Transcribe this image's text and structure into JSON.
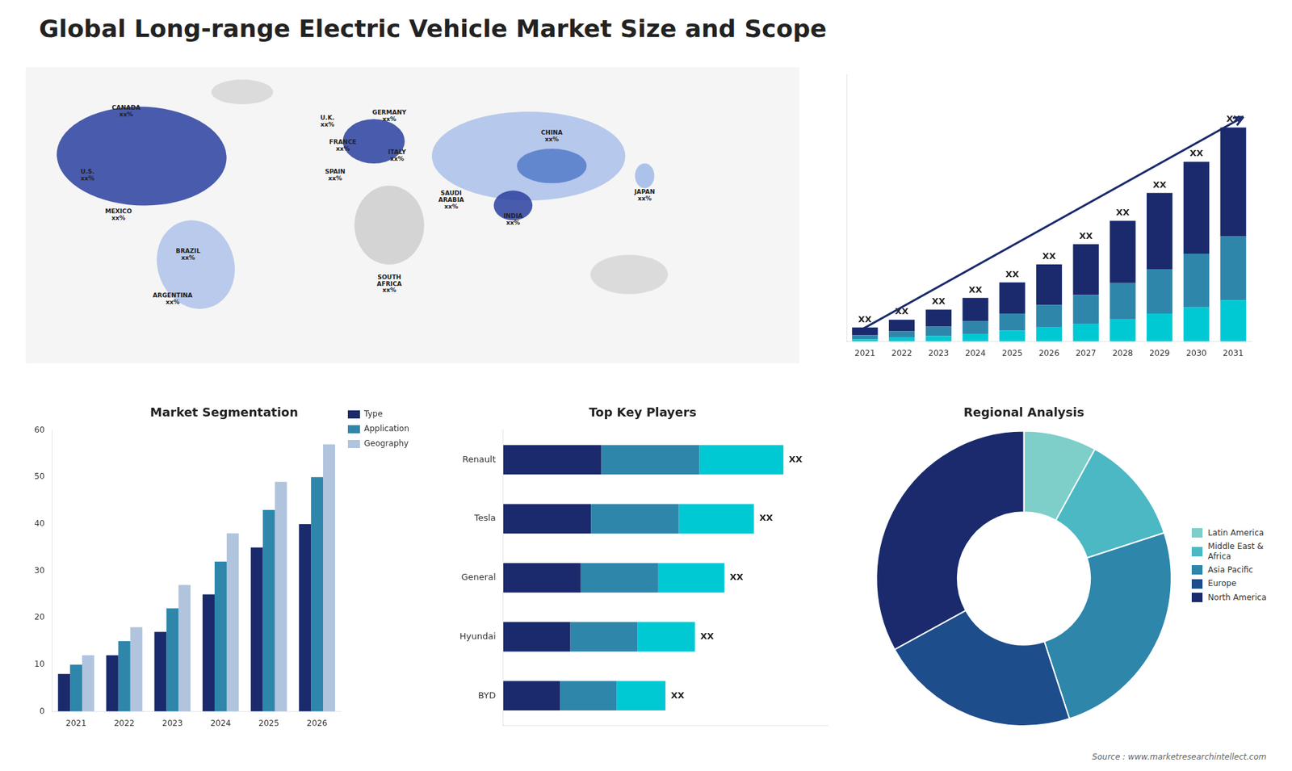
{
  "title": "Global Long-range Electric Vehicle Market Size and Scope",
  "annotations": [
    "Source : www.marketresearchintellect.com"
  ],
  "chart_data": [
    {
      "type": "map",
      "annotations": [
        "CANADA\nxx%",
        "U.S.\nxx%",
        "MEXICO\nxx%",
        "BRAZIL\nxx%",
        "ARGENTINA\nxx%",
        "U.K.\nxx%",
        "FRANCE\nxx%",
        "SPAIN\nxx%",
        "GERMANY\nxx%",
        "ITALY\nxx%",
        "SAUDI\nARABIA\nxx%",
        "SOUTH\nAFRICA\nxx%",
        "CHINA\nxx%",
        "INDIA\nxx%",
        "JAPAN\nxx%"
      ]
    },
    {
      "type": "bar",
      "stacked": true,
      "categories": [
        "2021",
        "2022",
        "2023",
        "2024",
        "2025",
        "2026",
        "2027",
        "2028",
        "2029",
        "2030",
        "2031"
      ],
      "series": [
        {
          "color": "#00c9d4",
          "values": [
            0.3,
            0.5,
            0.7,
            1.0,
            1.4,
            1.8,
            2.3,
            2.9,
            3.6,
            4.4,
            5.3
          ]
        },
        {
          "color": "#2e86ab",
          "values": [
            0.5,
            0.8,
            1.2,
            1.6,
            2.2,
            2.9,
            3.7,
            4.6,
            5.7,
            6.9,
            8.2
          ]
        },
        {
          "color": "#1a2a6c",
          "values": [
            1.0,
            1.5,
            2.2,
            3.0,
            4.0,
            5.2,
            6.5,
            8.0,
            9.8,
            11.8,
            14.0
          ]
        }
      ],
      "value_labels": [
        "XX",
        "XX",
        "XX",
        "XX",
        "XX",
        "XX",
        "XX",
        "XX",
        "XX",
        "XX",
        "XX"
      ],
      "ylim": [
        0,
        34.375
      ],
      "yticks": [],
      "tick_labels": "x",
      "grid": false
    },
    {
      "type": "bar",
      "title": "Market Segmentation",
      "categories": [
        "2021",
        "2022",
        "2023",
        "2024",
        "2025",
        "2026"
      ],
      "series": [
        {
          "name": "Type",
          "color": "#1a2a6c",
          "values": [
            8,
            12,
            17,
            25,
            35,
            40
          ]
        },
        {
          "name": "Application",
          "color": "#2e86ab",
          "values": [
            10,
            15,
            22,
            32,
            43,
            50
          ]
        },
        {
          "name": "Geography",
          "color": "#b0c4de",
          "values": [
            12,
            18,
            27,
            38,
            49,
            57
          ]
        }
      ],
      "ylim": [
        0,
        60
      ],
      "yticks": [
        0,
        10,
        20,
        30,
        40,
        50,
        60
      ],
      "legend": "right",
      "grid": false
    },
    {
      "type": "bar",
      "orientation": "horizontal",
      "stacked": true,
      "title": "Top Key Players",
      "categories": [
        "Renault",
        "Tesla",
        "General",
        "Hyundai",
        "BYD"
      ],
      "series": [
        {
          "color": "#1a2a6c",
          "values": [
            3.325,
            2.975,
            2.625,
            2.275,
            1.925
          ]
        },
        {
          "color": "#2e86ab",
          "values": [
            3.325,
            2.975,
            2.625,
            2.275,
            1.925
          ]
        },
        {
          "color": "#00c9d4",
          "values": [
            2.85,
            2.55,
            2.25,
            1.95,
            1.65
          ]
        }
      ],
      "value_labels": [
        "XX",
        "XX",
        "XX",
        "XX",
        "XX"
      ],
      "xlim": [
        0,
        11
      ],
      "xticks": [],
      "tick_labels": "y",
      "grid": false
    },
    {
      "type": "doughnut",
      "title": "Regional Analysis",
      "categories": [
        "Latin America",
        "Middle East &\nAfrica",
        "Asia Pacific",
        "Europe",
        "North America"
      ],
      "values": [
        8,
        12,
        25,
        22,
        33
      ],
      "colors": [
        "#7ececa",
        "#4cb8c4",
        "#2e86ab",
        "#1e4d8c",
        "#1a2a6c"
      ],
      "legend": "right"
    }
  ]
}
